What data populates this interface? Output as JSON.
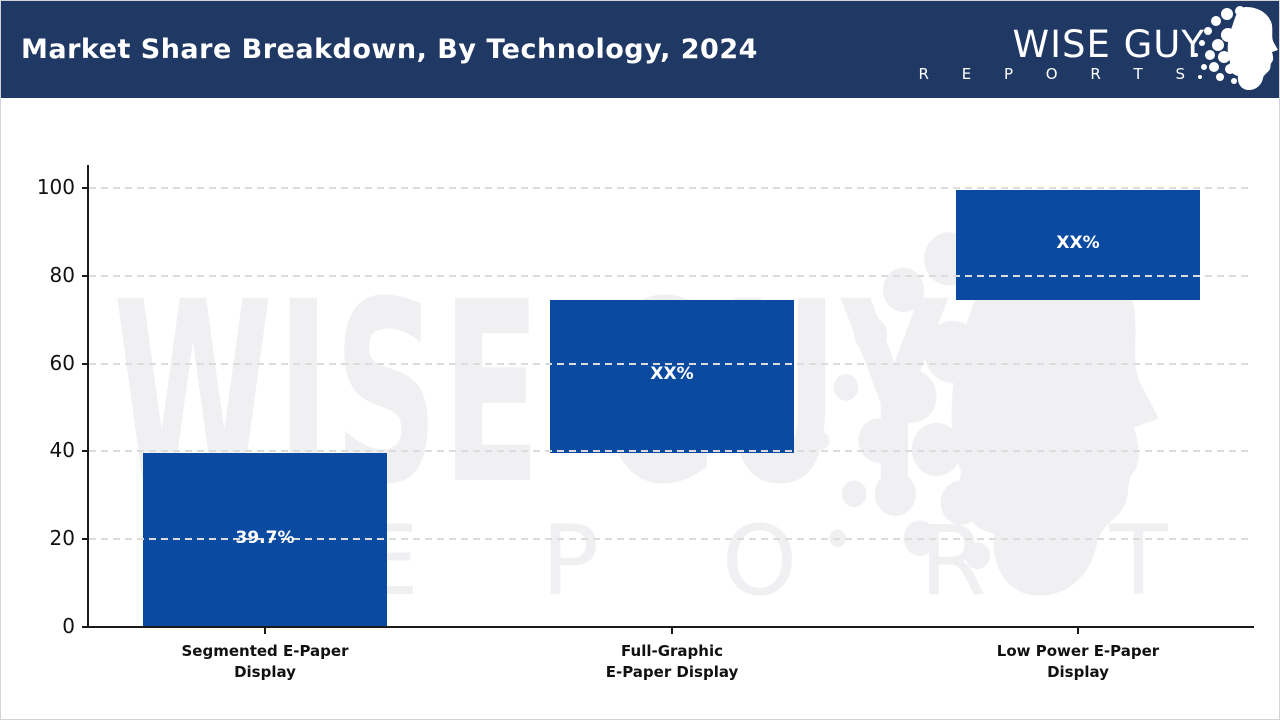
{
  "header": {
    "title": "Market Share Breakdown, By Technology, 2024",
    "logo": {
      "main": "WISE GUY",
      "sub": "R E P O R T S"
    }
  },
  "watermark": {
    "line1": "WISE GUY",
    "line2": "R E P O R T S"
  },
  "colors": {
    "header_bg": "#1f3864",
    "bar": "#0a4aa1",
    "grid": "#dcdcdc",
    "axis": "#1a1a1a",
    "value_label": "#ffffff",
    "watermark": "#f0f0f3"
  },
  "chart_data": {
    "type": "bar",
    "subtype": "floating-waterfall",
    "title": "Market Share Breakdown, By Technology, 2024",
    "categories": [
      [
        "Segmented E-Paper",
        "Display"
      ],
      [
        "Full-Graphic",
        "E-Paper Display"
      ],
      [
        "Low Power E-Paper",
        "Display"
      ]
    ],
    "bars": [
      {
        "category": "Segmented E-Paper Display",
        "start": 0,
        "end": 39.7,
        "label": "39.7%"
      },
      {
        "category": "Full-Graphic E-Paper Display",
        "start": 39.7,
        "end": 74.5,
        "label": "XX%"
      },
      {
        "category": "Low Power E-Paper Display",
        "start": 74.5,
        "end": 99.5,
        "label": "XX%"
      }
    ],
    "yticks": [
      0,
      20,
      40,
      60,
      80,
      100
    ],
    "ylim": [
      0,
      105
    ],
    "xlabel": "",
    "ylabel": "",
    "grid": "horizontal-dashed",
    "legend": "none"
  }
}
